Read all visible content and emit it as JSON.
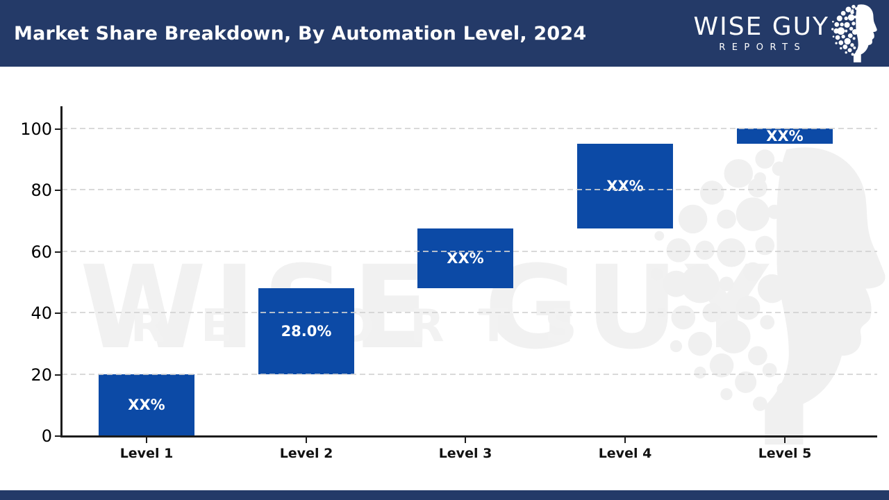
{
  "header": {
    "title": "Market Share Breakdown, By Automation Level, 2024"
  },
  "logo": {
    "line1": "WISE GUY",
    "line2": "REPORTS"
  },
  "watermark": {
    "line1": "WISE GUY",
    "line2": "REPORTS"
  },
  "chart_data": {
    "type": "bar",
    "variant": "waterfall",
    "title": "Market Share Breakdown, By Automation Level, 2024",
    "categories": [
      "Level 1",
      "Level 2",
      "Level 3",
      "Level 4",
      "Level 5"
    ],
    "segments": [
      {
        "category": "Level 1",
        "from": 0,
        "to": 20,
        "label": "XX%"
      },
      {
        "category": "Level 2",
        "from": 20,
        "to": 48,
        "label": "28.0%"
      },
      {
        "category": "Level 3",
        "from": 48,
        "to": 67.5,
        "label": "XX%"
      },
      {
        "category": "Level 4",
        "from": 67.5,
        "to": 95,
        "label": "XX%"
      },
      {
        "category": "Level 5",
        "from": 95,
        "to": 100,
        "label": "XX%"
      }
    ],
    "yticks": [
      0,
      20,
      40,
      60,
      80,
      100
    ],
    "ylim": [
      0,
      105
    ],
    "xlabel": "",
    "ylabel": "",
    "grid": "horizontal-dashed",
    "legend": "none",
    "bar_color": "#0c4aa6",
    "bar_label_color": "#ffffff"
  },
  "colors": {
    "band_bg": "#243a68",
    "bar": "#0c4aa6",
    "axis": "#1c1c1c",
    "gridline": "#d2d2d2",
    "watermark": "#f1f1f1",
    "title_text": "#ffffff"
  }
}
